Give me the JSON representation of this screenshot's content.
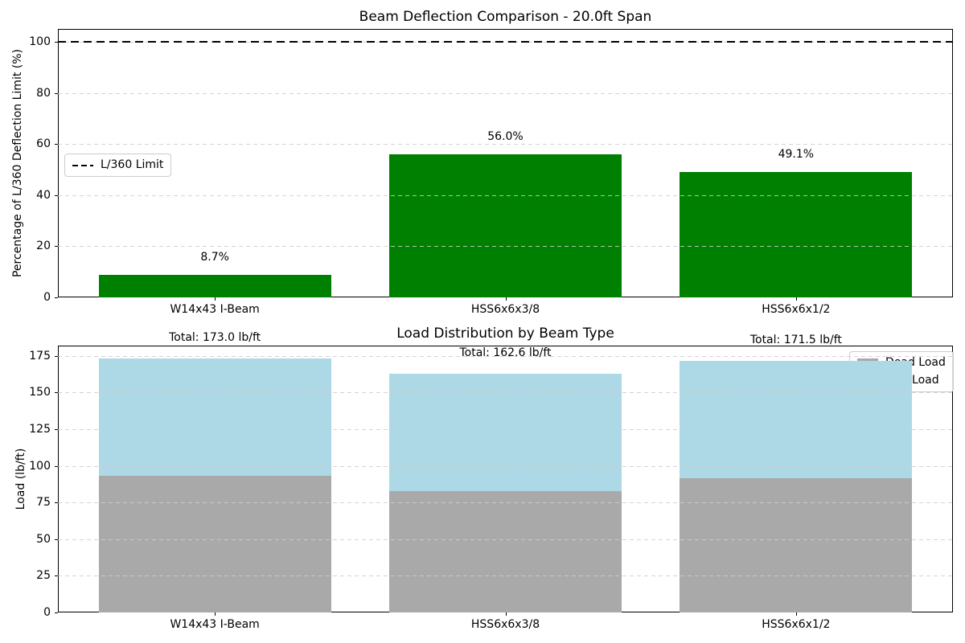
{
  "figure": {
    "background": "#ffffff"
  },
  "style": {
    "spine_color": "#000000",
    "grid_color": "#cdcdcd",
    "text_color": "#000000"
  },
  "chart_data": [
    {
      "id": "deflection-comparison",
      "type": "bar",
      "title": "Beam Deflection Comparison - 20.0ft Span",
      "ylabel": "Percentage of L/360 Deflection Limit (%)",
      "xlabel": "",
      "categories": [
        "W14x43 I-Beam",
        "HSS6x6x3/8",
        "HSS6x6x1/2"
      ],
      "values": [
        8.7,
        56.0,
        49.1
      ],
      "bar_labels": [
        "8.7%",
        "56.0%",
        "49.1%"
      ],
      "bar_color": "#008000",
      "ylim": [
        0,
        105
      ],
      "yticks": [
        0,
        20,
        40,
        60,
        80,
        100
      ],
      "grid": true,
      "limit_line": {
        "value": 100,
        "label": "L/360 Limit",
        "color": "#000000",
        "style": "dashed"
      },
      "legend": {
        "position": "center-left",
        "entries": [
          {
            "label": "L/360 Limit",
            "swatch": "dashed-line",
            "color": "#000000"
          }
        ]
      }
    },
    {
      "id": "load-distribution",
      "type": "stacked-bar",
      "title": "Load Distribution by Beam Type",
      "ylabel": "Load (lb/ft)",
      "xlabel": "",
      "categories": [
        "W14x43 I-Beam",
        "HSS6x6x3/8",
        "HSS6x6x1/2"
      ],
      "series": [
        {
          "name": "Dead Load",
          "color": "#a9a9a9",
          "values": [
            93.0,
            82.6,
            91.5
          ]
        },
        {
          "name": "Live Load",
          "color": "#add8e6",
          "values": [
            80.0,
            80.0,
            80.0
          ]
        }
      ],
      "totals": [
        173.0,
        162.6,
        171.5
      ],
      "total_labels": [
        "Total: 173.0 lb/ft",
        "Total: 162.6 lb/ft",
        "Total: 171.5 lb/ft"
      ],
      "ylim": [
        0,
        182
      ],
      "yticks": [
        0,
        25,
        50,
        75,
        100,
        125,
        150,
        175
      ],
      "grid": true,
      "legend": {
        "position": "upper-right",
        "entries": [
          {
            "label": "Dead Load",
            "swatch": "rect",
            "color": "#a9a9a9"
          },
          {
            "label": "Live Load",
            "swatch": "rect",
            "color": "#add8e6"
          }
        ]
      }
    }
  ]
}
